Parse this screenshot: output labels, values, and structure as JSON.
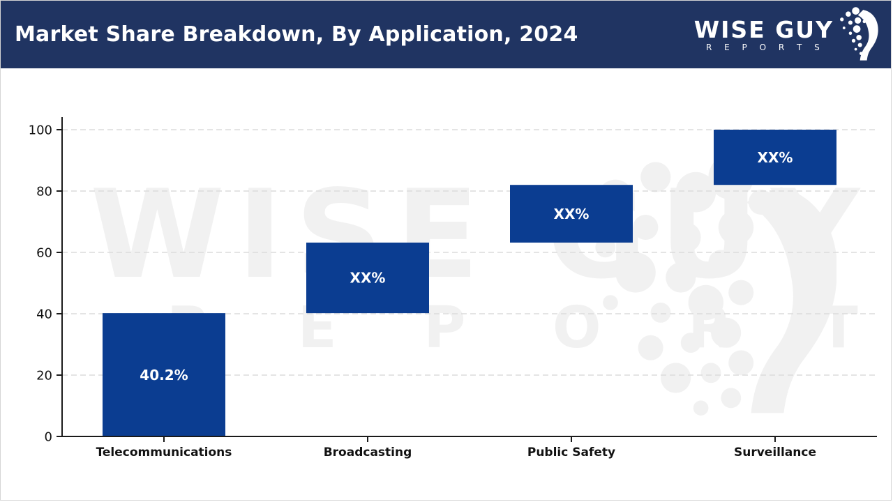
{
  "header": {
    "title": "Market Share Breakdown, By Application, 2024",
    "logo": {
      "brand": "WISE GUY",
      "sub": "R E P O R T S"
    }
  },
  "watermark": {
    "line1": "WISE GUY",
    "line2": "R E P O R T S"
  },
  "chart_data": {
    "type": "bar",
    "subtype": "waterfall",
    "title": "Market Share Breakdown, By Application, 2024",
    "categories": [
      "Telecommunications",
      "Broadcasting",
      "Public Safety",
      "Surveillance"
    ],
    "segments": [
      {
        "category": "Telecommunications",
        "start": 0,
        "end": 40.2,
        "label": "40.2%"
      },
      {
        "category": "Broadcasting",
        "start": 40.2,
        "end": 63.2,
        "label": "XX%"
      },
      {
        "category": "Public Safety",
        "start": 63.2,
        "end": 82,
        "label": "XX%"
      },
      {
        "category": "Surveillance",
        "start": 82,
        "end": 100,
        "label": "XX%"
      }
    ],
    "xlabel": "",
    "ylabel": "",
    "ylim": [
      0,
      100
    ],
    "yticks": [
      0,
      20,
      40,
      60,
      80,
      100
    ],
    "grid": "dashed-horizontal",
    "legend": "none"
  },
  "colors": {
    "header_bg": "#203462",
    "bar": "#0b3d91",
    "bar_label": "#ffffff",
    "grid": "#dcdcdc",
    "axis": "#1a1a1a",
    "tick_label": "#111111",
    "watermark": "#f1f1f1"
  }
}
